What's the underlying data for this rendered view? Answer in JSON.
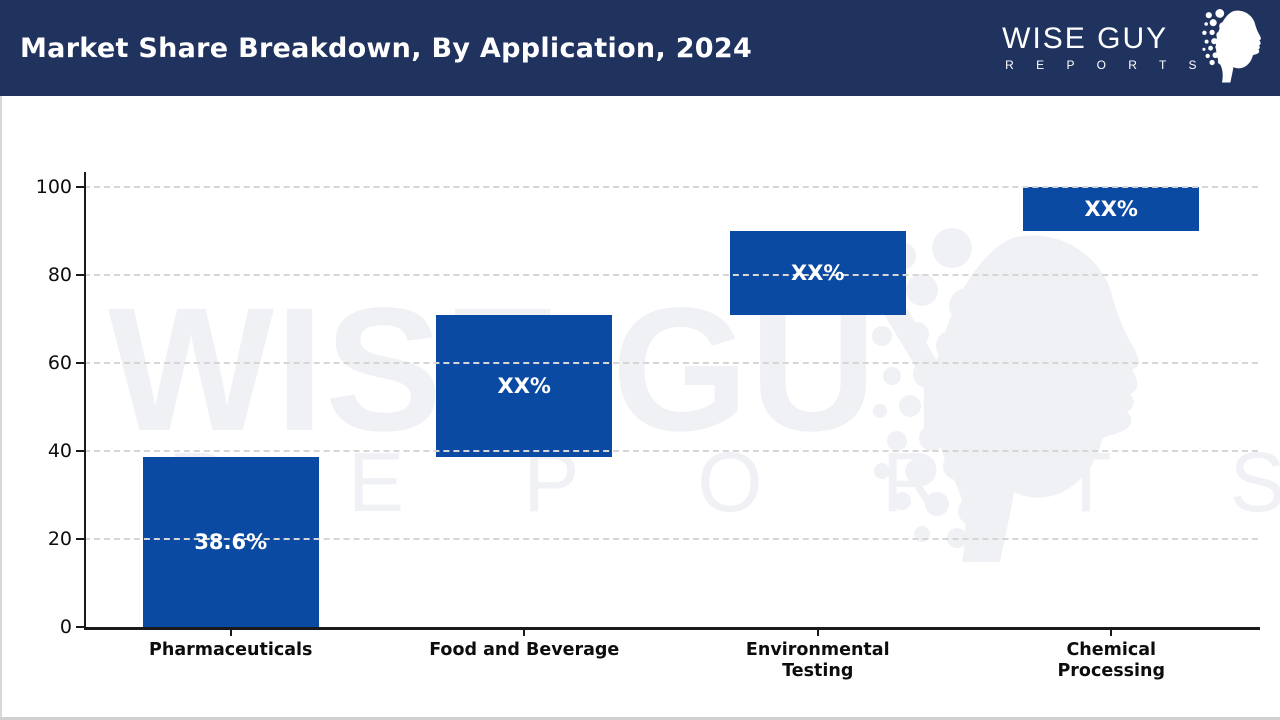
{
  "header": {
    "title": "Market Share Breakdown, By Application, 2024",
    "logo": {
      "brand_top": "WISE GUY",
      "brand_bottom": "R E P O R T S"
    }
  },
  "watermark": {
    "text_top": "WISE GUY",
    "text_bottom": "R E P O R T S"
  },
  "colors": {
    "header_bg": "#20335F",
    "bar": "#0B4AA2",
    "bar_label_text": "#FFFFFF",
    "grid": "#D6D6D6",
    "axis": "#1A1A1A",
    "watermark": "#F0F1F5"
  },
  "chart_data": {
    "type": "bar",
    "subtype": "waterfall",
    "title": "Market Share Breakdown, By Application, 2024",
    "categories": [
      "Pharmaceuticals",
      "Food and Beverage",
      "Environmental Testing",
      "Chemical Processing"
    ],
    "segments": [
      {
        "category": "Pharmaceuticals",
        "tick_label": "Pharmaceuticals",
        "start": 0,
        "end": 38.6,
        "label": "38.6%"
      },
      {
        "category": "Food and Beverage",
        "tick_label": "Food and Beverage",
        "start": 38.6,
        "end": 71,
        "label": "XX%"
      },
      {
        "category": "Environmental Testing",
        "tick_label": "Environmental\nTesting",
        "start": 71,
        "end": 90,
        "label": "XX%"
      },
      {
        "category": "Chemical Processing",
        "tick_label": "Chemical\nProcessing",
        "start": 90,
        "end": 100,
        "label": "XX%"
      }
    ],
    "ylim": [
      0,
      100
    ],
    "yticks": [
      0,
      20,
      40,
      60,
      80,
      100
    ],
    "grid": "horizontal-dashed",
    "legend": "none",
    "xlabel": "",
    "ylabel": ""
  }
}
